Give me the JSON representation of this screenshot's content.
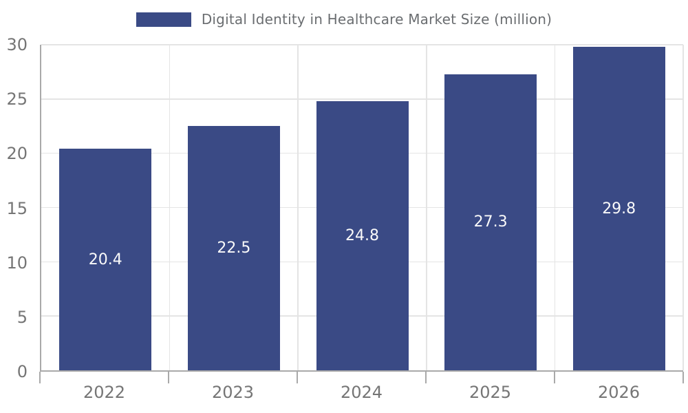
{
  "legend": {
    "label": "Digital Identity in Healthcare Market Size (million)"
  },
  "chart_data": {
    "type": "bar",
    "title": "Digital Identity in Healthcare Market Size (million)",
    "categories": [
      "2022",
      "2023",
      "2024",
      "2025",
      "2026"
    ],
    "values": [
      20.4,
      22.5,
      24.8,
      27.3,
      29.8
    ],
    "value_labels": [
      "20.4",
      "22.5",
      "24.8",
      "27.3",
      "29.8"
    ],
    "xlabel": "",
    "ylabel": "",
    "ylim": [
      0,
      30
    ],
    "yticks": [
      0,
      5,
      10,
      15,
      20,
      25,
      30
    ],
    "grid": true,
    "legend_position": "top-center",
    "bar_color": "#3A4A85",
    "value_label_color": "#FAFAFA",
    "axis_color": "#A9A9A9",
    "grid_color": "#E4E4E4",
    "tick_label_color": "#757575",
    "legend_text_color": "#6A6D70"
  }
}
